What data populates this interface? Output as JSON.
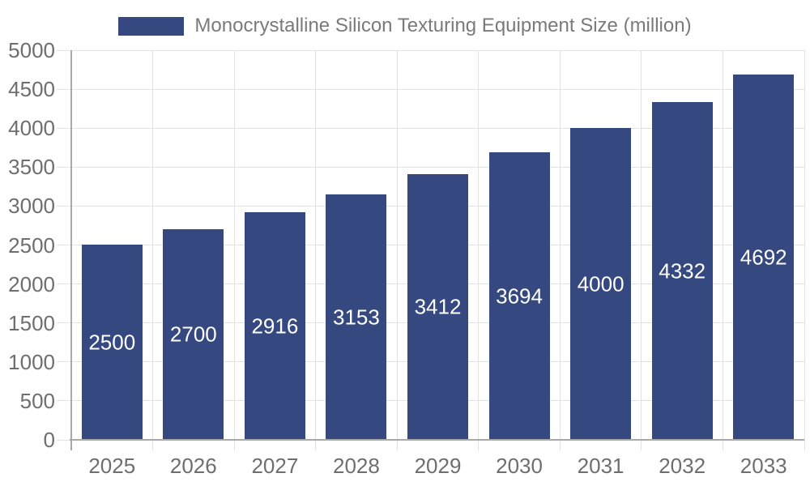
{
  "legend": {
    "label": "Monocrystalline Silicon Texturing Equipment Size (million)"
  },
  "colors": {
    "bar": "#35487F",
    "grid": "#E2E2E2",
    "axis_line": "#A8A8A8",
    "axis_text": "#6E6E6E",
    "legend_text": "#7A7A7A",
    "bar_label_text": "#FFFFFF",
    "background": "#FFFFFF"
  },
  "chart_data": {
    "type": "bar",
    "title": "Monocrystalline Silicon Texturing Equipment Size (million)",
    "categories": [
      "2025",
      "2026",
      "2027",
      "2028",
      "2029",
      "2030",
      "2031",
      "2032",
      "2033"
    ],
    "series": [
      {
        "name": "Monocrystalline Silicon Texturing Equipment Size (million)",
        "values": [
          2500,
          2700,
          2916,
          3153,
          3412,
          3694,
          4000,
          4332,
          4692
        ]
      }
    ],
    "xlabel": "",
    "ylabel": "",
    "ylim": [
      0,
      5000
    ],
    "y_ticks": [
      0,
      500,
      1000,
      1500,
      2000,
      2500,
      3000,
      3500,
      4000,
      4500,
      5000
    ],
    "grid": true,
    "legend_position": "top-center",
    "value_labels": "inside-center"
  }
}
